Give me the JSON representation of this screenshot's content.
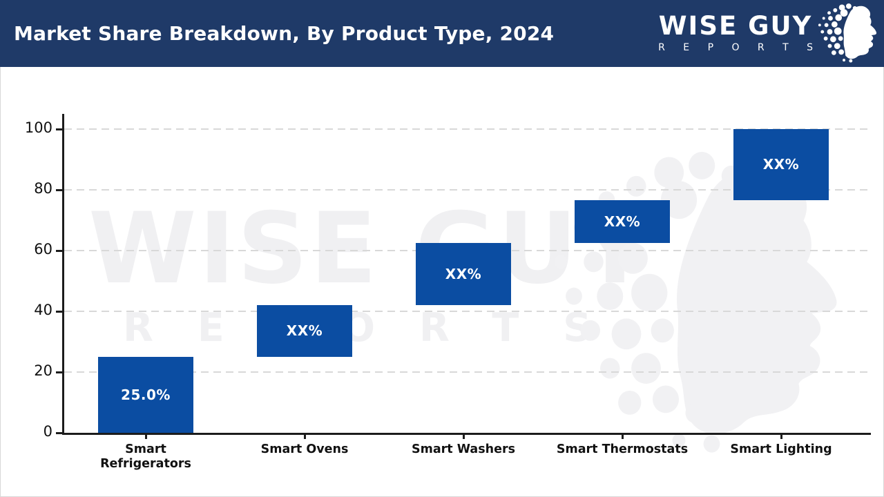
{
  "header": {
    "title": "Market Share Breakdown, By Product Type, 2024",
    "background_color": "#1f3a68",
    "logo": {
      "line1": "WISE GUY",
      "line2": "R E P O R T S"
    }
  },
  "watermark": {
    "line1": "WISE GUY",
    "line2": "REPORTS"
  },
  "chart_data": {
    "type": "bar",
    "subtype": "waterfall",
    "title": "Market Share Breakdown, By Product Type, 2024",
    "xlabel": "",
    "ylabel": "",
    "ylim": [
      0,
      105
    ],
    "y_ticks": [
      0,
      20,
      40,
      60,
      80,
      100
    ],
    "grid": true,
    "grid_style": "dashed-horizontal",
    "legend": "none",
    "bar_color": "#0b4da2",
    "bar_label_color": "#ffffff",
    "categories": [
      "Smart Refrigerators",
      "Smart Ovens",
      "Smart Washers",
      "Smart Thermostats",
      "Smart Lighting"
    ],
    "x_tick_label_lines": [
      [
        "Smart",
        "Refrigerators"
      ],
      [
        "Smart Ovens"
      ],
      [
        "Smart Washers"
      ],
      [
        "Smart Thermostats"
      ],
      [
        "Smart Lighting"
      ]
    ],
    "segments": [
      {
        "category": "Smart Refrigerators",
        "start": 0,
        "end": 25,
        "value_label": "25.0%"
      },
      {
        "category": "Smart Ovens",
        "start": 25,
        "end": 42,
        "value_label": "XX%"
      },
      {
        "category": "Smart Washers",
        "start": 42,
        "end": 62.4,
        "value_label": "XX%"
      },
      {
        "category": "Smart Thermostats",
        "start": 62.4,
        "end": 76.6,
        "value_label": "XX%"
      },
      {
        "category": "Smart Lighting",
        "start": 76.6,
        "end": 100,
        "value_label": "XX%"
      }
    ]
  }
}
